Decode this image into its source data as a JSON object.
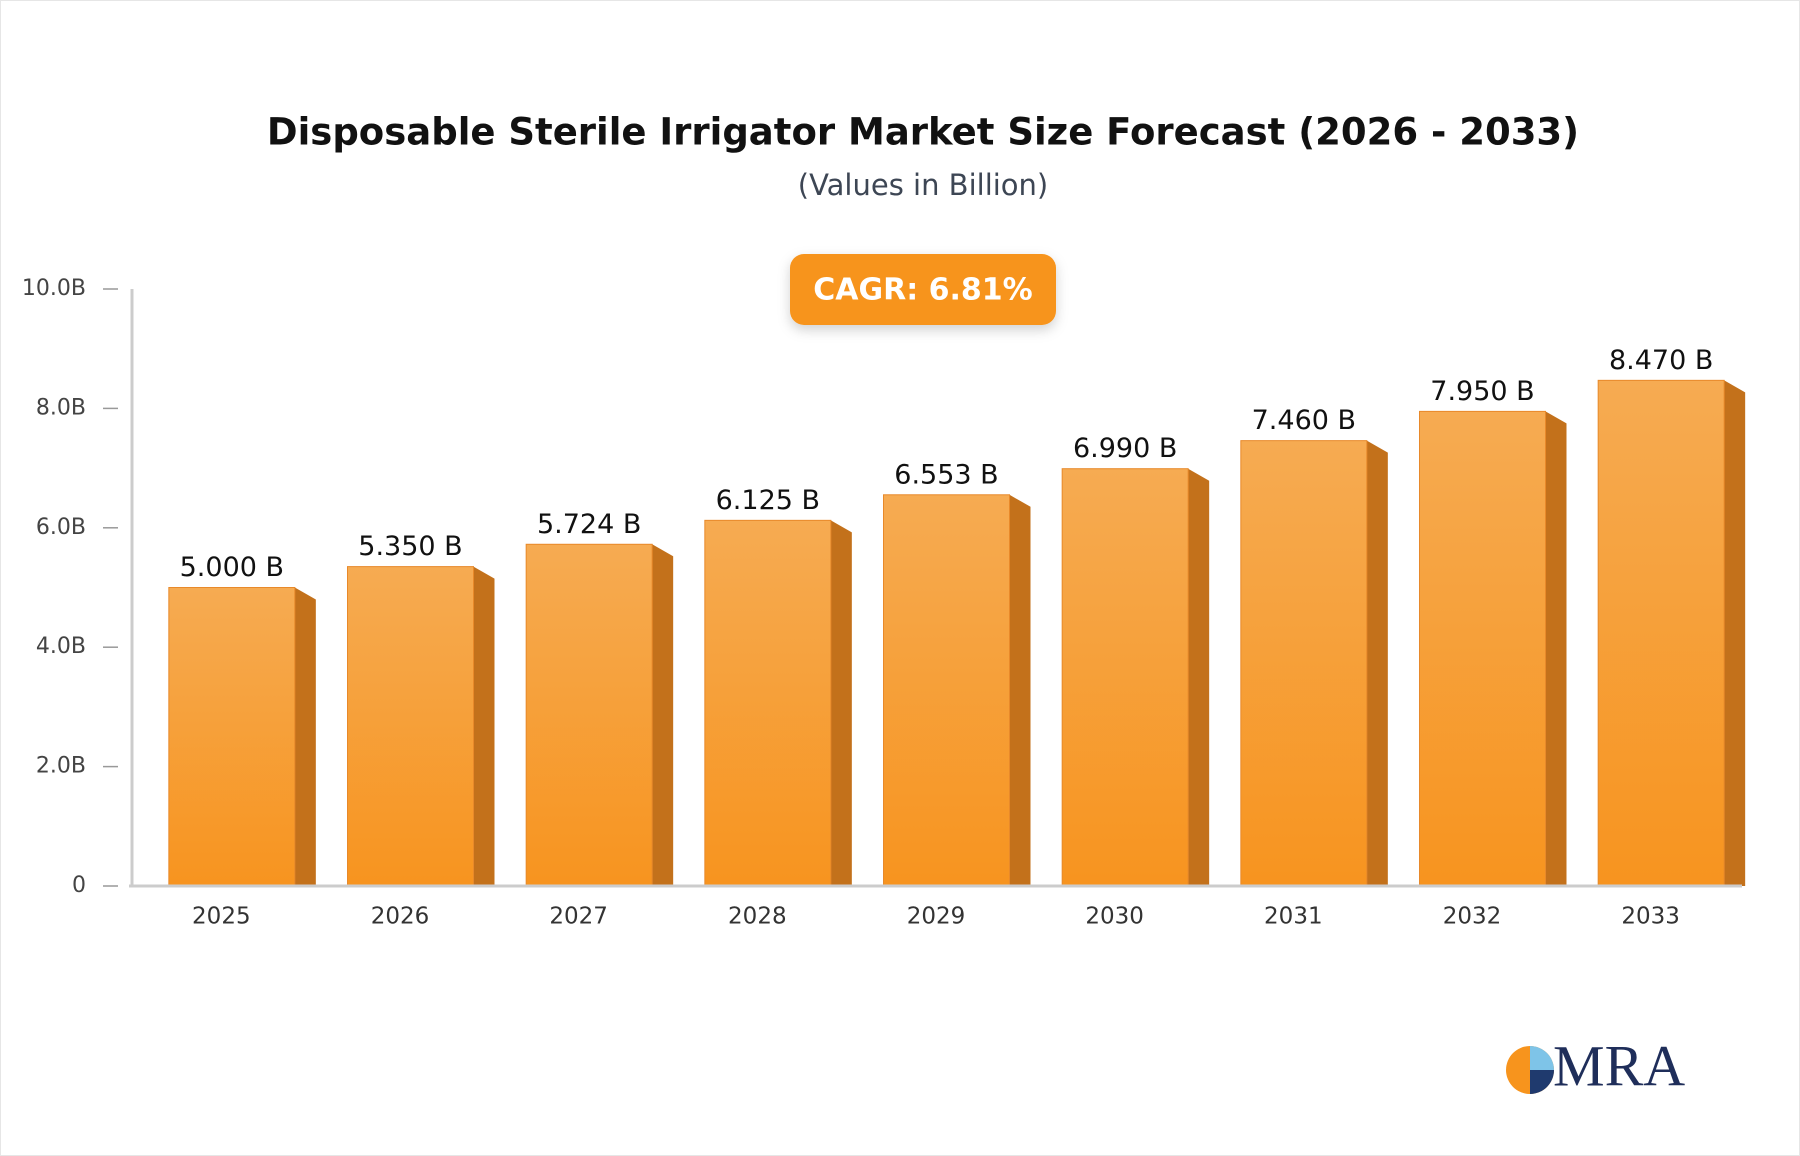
{
  "chart_data": {
    "type": "bar",
    "title": "Disposable Sterile Irrigator Market Size Forecast (2026 - 2033)",
    "subtitle": "(Values in Billion)",
    "annotation": "CAGR: 6.81%",
    "logo": "MRA",
    "categories": [
      "2025",
      "2026",
      "2027",
      "2028",
      "2029",
      "2030",
      "2031",
      "2032",
      "2033"
    ],
    "values": [
      5.0,
      5.35,
      5.724,
      6.125,
      6.553,
      6.99,
      7.46,
      7.95,
      8.47
    ],
    "value_labels": [
      "5.000 B",
      "5.350 B",
      "5.724 B",
      "6.125 B",
      "6.553 B",
      "6.990 B",
      "7.460 B",
      "7.950 B",
      "8.470 B"
    ],
    "color": "#f7a145",
    "ylim": [
      0,
      10
    ],
    "yticks": [
      0,
      {
        "value": 2,
        "label": "2.0B"
      },
      {
        "value": 4,
        "label": "4.0B"
      },
      {
        "value": 6,
        "label": "6.0B"
      },
      {
        "value": 8,
        "label": "8.0B"
      },
      {
        "value": 10,
        "label": "10.0B"
      }
    ],
    "grid": false
  }
}
